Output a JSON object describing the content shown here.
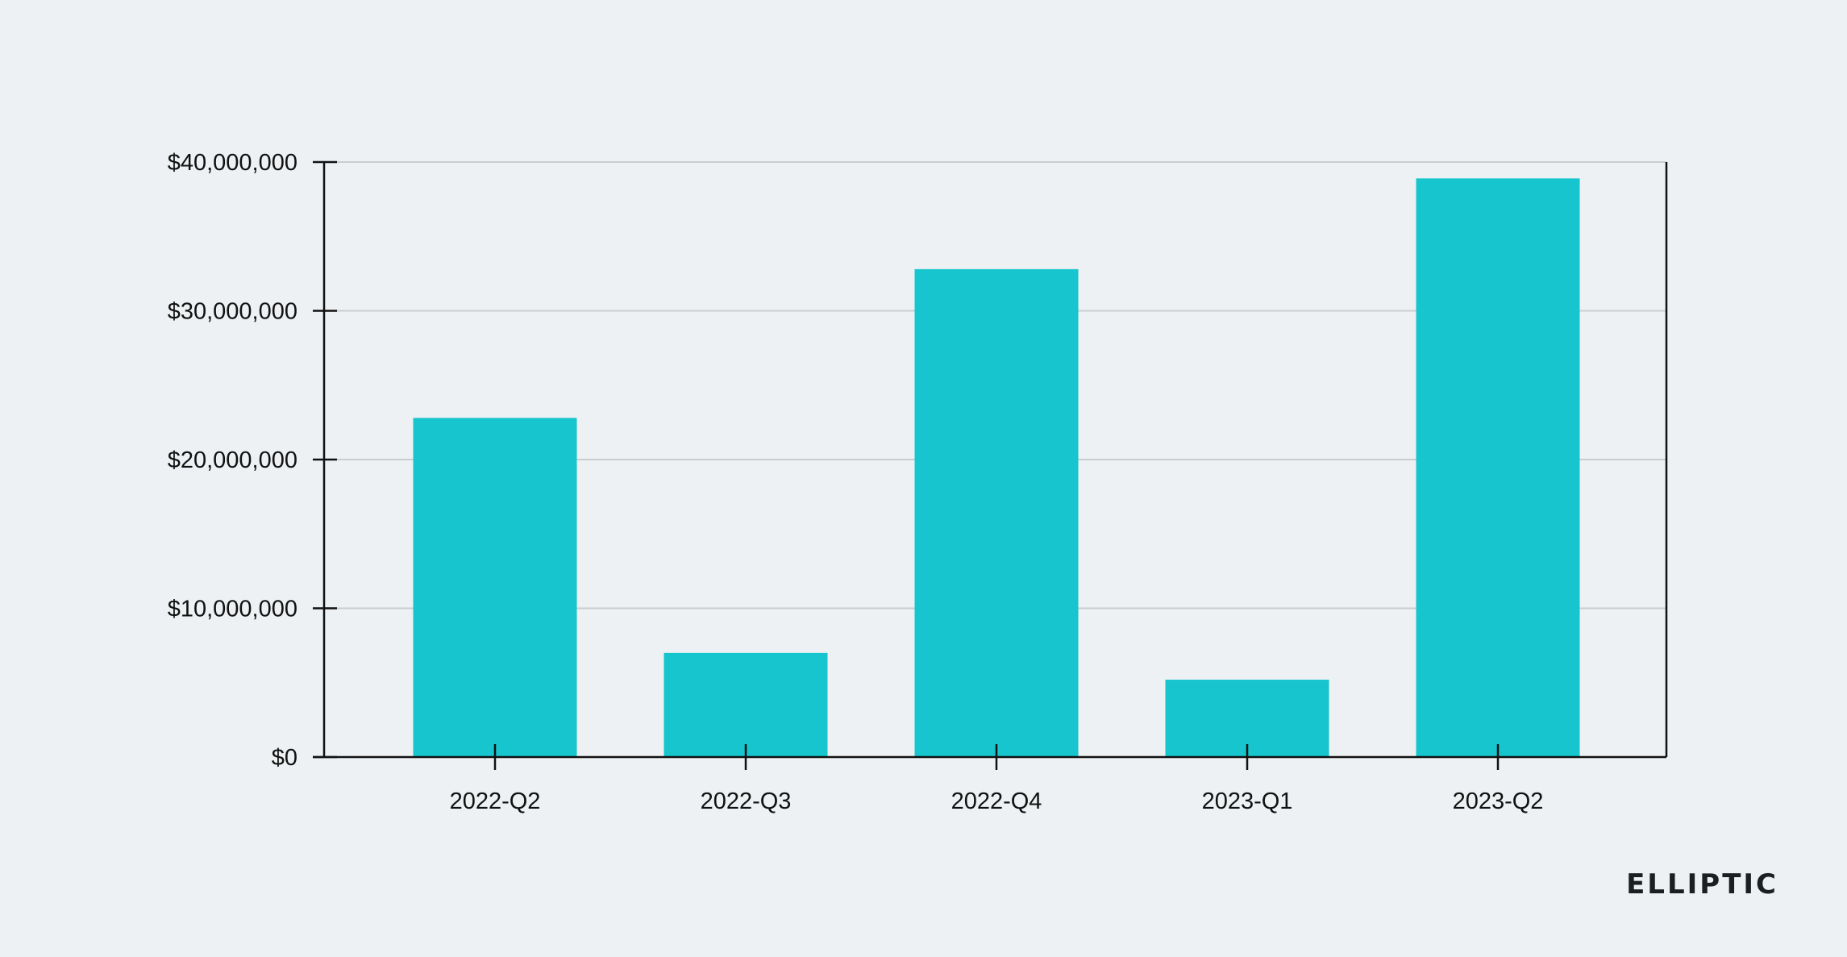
{
  "chart_data": {
    "type": "bar",
    "categories": [
      "2022-Q2",
      "2022-Q3",
      "2022-Q4",
      "2023-Q1",
      "2023-Q2"
    ],
    "values": [
      22800000,
      7000000,
      32800000,
      5200000,
      38900000
    ],
    "title": "",
    "xlabel": "",
    "ylabel": "",
    "ylim": [
      0,
      40000000
    ],
    "y_ticks": [
      0,
      10000000,
      20000000,
      30000000,
      40000000
    ],
    "y_tick_labels": [
      "$0",
      "$10,000,000",
      "$20,000,000",
      "$30,000,000",
      "$40,000,000"
    ],
    "grid": true,
    "legend": "none",
    "bar_color": "#16c5cd",
    "background_color": "#edf1f3",
    "grid_color": "#c9cdd0",
    "axis_color": "#111111"
  },
  "branding": {
    "logo_text": "ELLIPTIC"
  }
}
